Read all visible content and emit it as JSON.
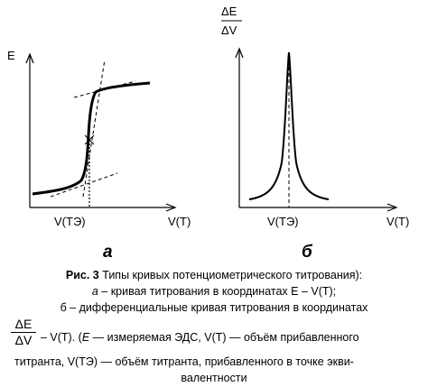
{
  "panel_a": {
    "y_label": "E",
    "x_tick": "V(ТЭ)",
    "x_label": "V(T)",
    "panel_label": "а"
  },
  "panel_b": {
    "y_label_num": "ΔE",
    "y_label_den": "ΔV",
    "x_tick": "V(ТЭ)",
    "x_label": "V(T)",
    "panel_label": "б"
  },
  "caption": {
    "fig_number": "Рис. 3",
    "line1": "Типы кривых потенциометрического титрования):",
    "line2_letter": "а",
    "line2_text": "– кривая титрования в координатах E – V(T);",
    "line3": "б – дифференциальные кривая титрования в координатах",
    "frac_num": "ΔE",
    "frac_den": "ΔV",
    "line4_a": "– V(T). (",
    "line4_e": "E",
    "line4_b": "— измеряемая ЭДС, V(T) — объём прибавленного",
    "line5": "титранта, V(ТЭ) — объём титранта, прибавленного в точке экви-",
    "line6": "валентности"
  }
}
